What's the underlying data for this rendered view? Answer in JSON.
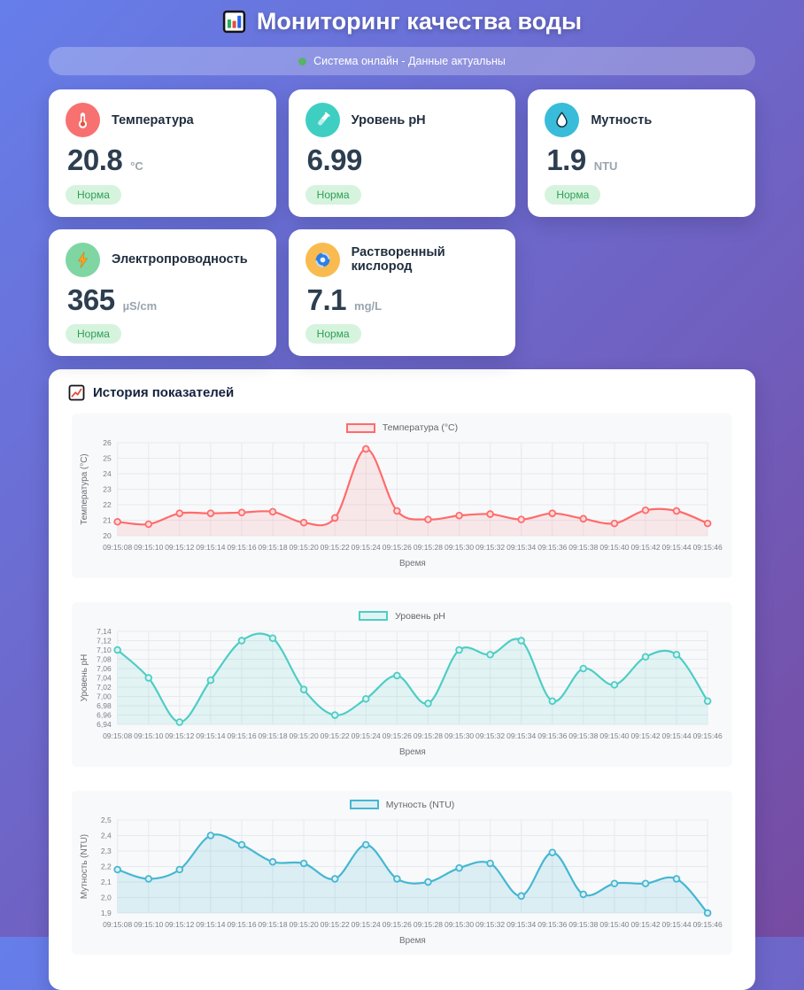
{
  "header": {
    "title": "Мониторинг качества воды",
    "icon": "bar-chart-icon"
  },
  "status": {
    "text": "Система онлайн - Данные актуальны",
    "dot_color": "#57b368"
  },
  "cards": [
    {
      "id": "temperature",
      "title": "Температура",
      "value": "20.8",
      "unit": "°C",
      "status": "Норма",
      "icon": "thermometer-icon",
      "icon_bg": "#f87171"
    },
    {
      "id": "ph",
      "title": "Уровень pH",
      "value": "6.99",
      "unit": "",
      "status": "Норма",
      "icon": "test-tube-icon",
      "icon_bg": "#3ecfc2"
    },
    {
      "id": "turbidity",
      "title": "Мутность",
      "value": "1.9",
      "unit": "NTU",
      "status": "Норма",
      "icon": "droplet-icon",
      "icon_bg": "#38bcd9"
    },
    {
      "id": "conductivity",
      "title": "Электропроводность",
      "value": "365",
      "unit": "µS/cm",
      "status": "Норма",
      "icon": "lightning-icon",
      "icon_bg": "#7fd6a2"
    },
    {
      "id": "oxygen",
      "title": "Растворенный кислород",
      "value": "7.1",
      "unit": "mg/L",
      "status": "Норма",
      "icon": "cyclone-icon",
      "icon_bg": "#f9bb4f"
    }
  ],
  "history": {
    "title": "История показателей",
    "icon": "chart-increasing-icon"
  },
  "chart_data": [
    {
      "type": "line",
      "legend": "Температура (°C)",
      "xlabel": "Время",
      "ylabel": "Температура (°C)",
      "x": [
        "09:15:08",
        "09:15:10",
        "09:15:12",
        "09:15:14",
        "09:15:16",
        "09:15:18",
        "09:15:20",
        "09:15:22",
        "09:15:24",
        "09:15:26",
        "09:15:28",
        "09:15:30",
        "09:15:32",
        "09:15:34",
        "09:15:36",
        "09:15:38",
        "09:15:40",
        "09:15:42",
        "09:15:44",
        "09:15:46"
      ],
      "values": [
        20.9,
        20.75,
        21.45,
        21.45,
        21.5,
        21.55,
        20.85,
        21.15,
        25.6,
        21.6,
        21.05,
        21.3,
        21.4,
        21.05,
        21.45,
        21.1,
        20.8,
        21.65,
        21.6,
        20.8
      ],
      "ylim": [
        20,
        26
      ],
      "yticks": [
        {
          "v": 20,
          "label": "20"
        },
        {
          "v": 21,
          "label": "21"
        },
        {
          "v": 22,
          "label": "22"
        },
        {
          "v": 23,
          "label": "23"
        },
        {
          "v": 24,
          "label": "24"
        },
        {
          "v": 25,
          "label": "25"
        },
        {
          "v": 26,
          "label": "26"
        }
      ],
      "grid": true,
      "legend_position": "top",
      "color": "#ff6b6b",
      "fill": "rgba(255,107,107,0.12)",
      "point_fill": "#fcdcdc"
    },
    {
      "type": "line",
      "legend": "Уровень pH",
      "xlabel": "Время",
      "ylabel": "Уровень pH",
      "x": [
        "09:15:08",
        "09:15:10",
        "09:15:12",
        "09:15:14",
        "09:15:16",
        "09:15:18",
        "09:15:20",
        "09:15:22",
        "09:15:24",
        "09:15:26",
        "09:15:28",
        "09:15:30",
        "09:15:32",
        "09:15:34",
        "09:15:36",
        "09:15:38",
        "09:15:40",
        "09:15:42",
        "09:15:44",
        "09:15:46"
      ],
      "values": [
        7.1,
        7.04,
        6.945,
        7.035,
        7.12,
        7.125,
        7.015,
        6.96,
        6.995,
        7.045,
        6.985,
        7.1,
        7.09,
        7.12,
        6.99,
        7.06,
        7.025,
        7.085,
        7.09,
        6.99
      ],
      "ylim": [
        6.94,
        7.14
      ],
      "yticks": [
        {
          "v": 6.94,
          "label": "6,94"
        },
        {
          "v": 6.96,
          "label": "6,96"
        },
        {
          "v": 6.98,
          "label": "6,98"
        },
        {
          "v": 7.0,
          "label": "7,00"
        },
        {
          "v": 7.02,
          "label": "7,02"
        },
        {
          "v": 7.04,
          "label": "7,04"
        },
        {
          "v": 7.06,
          "label": "7,06"
        },
        {
          "v": 7.08,
          "label": "7,08"
        },
        {
          "v": 7.1,
          "label": "7,10"
        },
        {
          "v": 7.12,
          "label": "7,12"
        },
        {
          "v": 7.14,
          "label": "7,14"
        }
      ],
      "grid": true,
      "legend_position": "top",
      "color": "#4ecdc4",
      "fill": "rgba(78,205,196,0.12)",
      "point_fill": "#d9f4f1"
    },
    {
      "type": "line",
      "legend": "Мутность (NTU)",
      "xlabel": "Время",
      "ylabel": "Мутность (NTU)",
      "x": [
        "09:15:08",
        "09:15:10",
        "09:15:12",
        "09:15:14",
        "09:15:16",
        "09:15:18",
        "09:15:20",
        "09:15:22",
        "09:15:24",
        "09:15:26",
        "09:15:28",
        "09:15:30",
        "09:15:32",
        "09:15:34",
        "09:15:36",
        "09:15:38",
        "09:15:40",
        "09:15:42",
        "09:15:44",
        "09:15:46"
      ],
      "values": [
        2.18,
        2.12,
        2.18,
        2.4,
        2.34,
        2.23,
        2.22,
        2.12,
        2.34,
        2.12,
        2.1,
        2.19,
        2.22,
        2.01,
        2.29,
        2.02,
        2.09,
        2.09,
        2.12,
        1.9
      ],
      "ylim": [
        1.9,
        2.5
      ],
      "yticks": [
        {
          "v": 1.9,
          "label": "1,9"
        },
        {
          "v": 2.0,
          "label": "2,0"
        },
        {
          "v": 2.1,
          "label": "2,1"
        },
        {
          "v": 2.2,
          "label": "2,2"
        },
        {
          "v": 2.3,
          "label": "2,3"
        },
        {
          "v": 2.4,
          "label": "2,4"
        },
        {
          "v": 2.5,
          "label": "2,5"
        }
      ],
      "grid": true,
      "legend_position": "top",
      "color": "#45b7d1",
      "fill": "rgba(69,183,209,0.16)",
      "point_fill": "#dbeff5"
    }
  ]
}
